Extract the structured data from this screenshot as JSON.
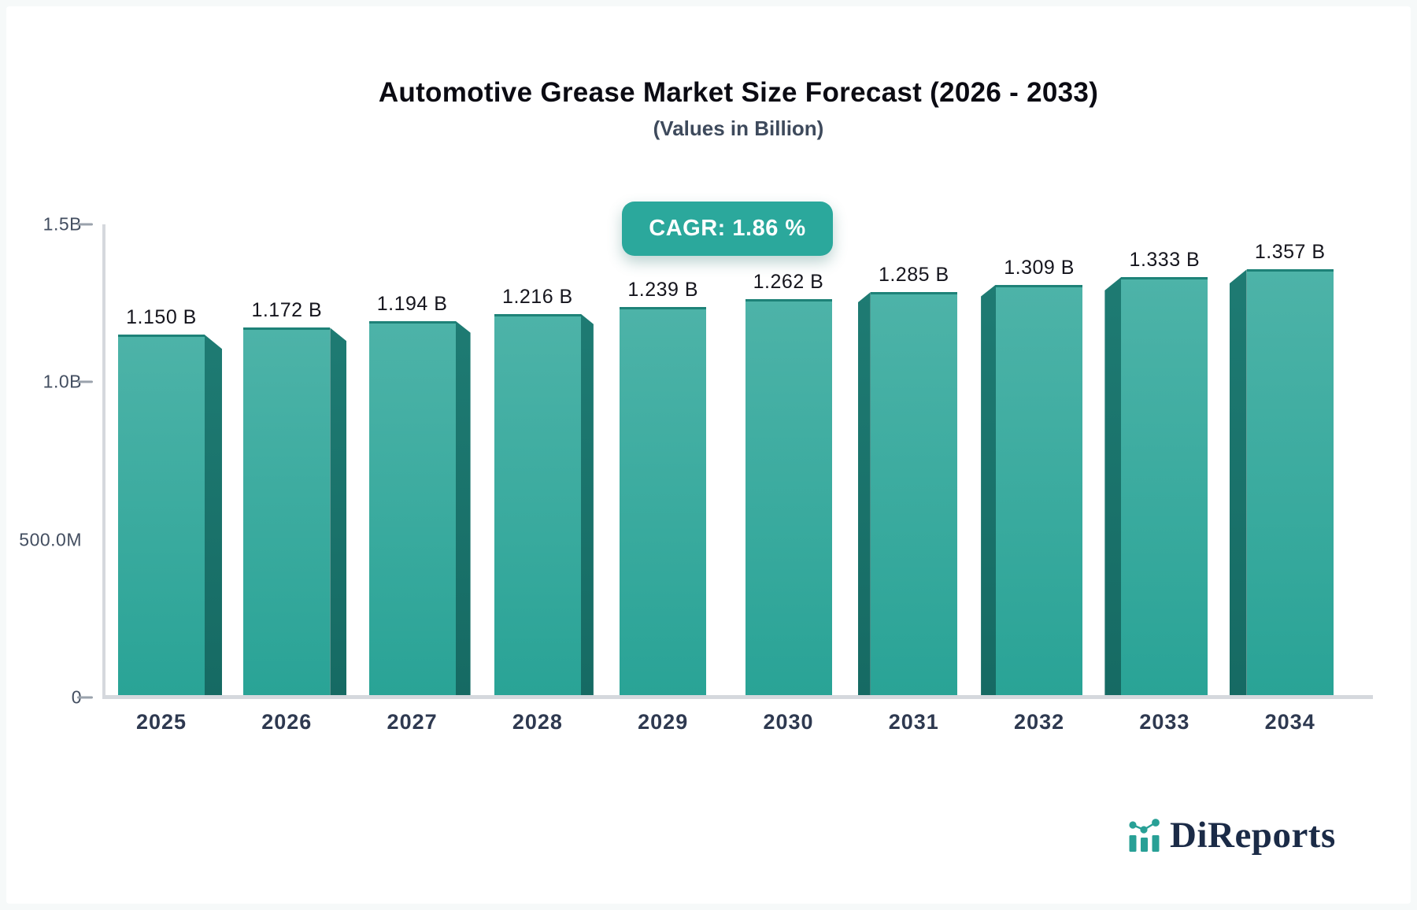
{
  "title": "Automotive Grease Market Size Forecast (2026 - 2033)",
  "subtitle": "(Values in Billion)",
  "cagr_label": "CAGR: 1.86 %",
  "logo": {
    "text": "DiReports",
    "icon": "mini-bar-chart-with-trend-dots"
  },
  "colors": {
    "title": "#0b0b13",
    "subtitle": "#3e4a5c",
    "badge": "#2ba89c",
    "bar_face_top": "#4db3a8",
    "bar_face_bottom": "#29a396",
    "bar_side": "#1e7b73",
    "axis": "#d5d8dd",
    "tick": "#9aa2ac",
    "y_label": "#434e60",
    "x_label": "#2e3950",
    "value_label": "#15151d",
    "logo_text": "#1b2b47",
    "logo_teal": "#28a096"
  },
  "chart_data": {
    "type": "bar",
    "title": "Automotive Grease Market Size Forecast (2026 - 2033)",
    "subtitle": "(Values in Billion)",
    "annotation": "CAGR: 1.86 %",
    "categories": [
      "2025",
      "2026",
      "2027",
      "2028",
      "2029",
      "2030",
      "2031",
      "2032",
      "2033",
      "2034"
    ],
    "values": [
      1.15,
      1.172,
      1.194,
      1.216,
      1.239,
      1.262,
      1.285,
      1.309,
      1.333,
      1.357
    ],
    "value_labels": [
      "1.150 B",
      "1.172 B",
      "1.194 B",
      "1.216 B",
      "1.239 B",
      "1.262 B",
      "1.285 B",
      "1.309 B",
      "1.333 B",
      "1.357 B"
    ],
    "unit": "B",
    "xlabel": "",
    "ylabel": "",
    "ylim": [
      0,
      1.5
    ],
    "yticks": [
      {
        "label": "1.5B",
        "value": 1.5,
        "tick": true
      },
      {
        "label": "1.0B",
        "value": 1.0,
        "tick": true
      },
      {
        "label": "500.0M",
        "value": 0.5,
        "tick": false
      },
      {
        "label": "0",
        "value": 0.0,
        "tick": true
      }
    ],
    "grid": false,
    "legend": false,
    "bar_style": "3d-perspective, side faces point toward center"
  }
}
